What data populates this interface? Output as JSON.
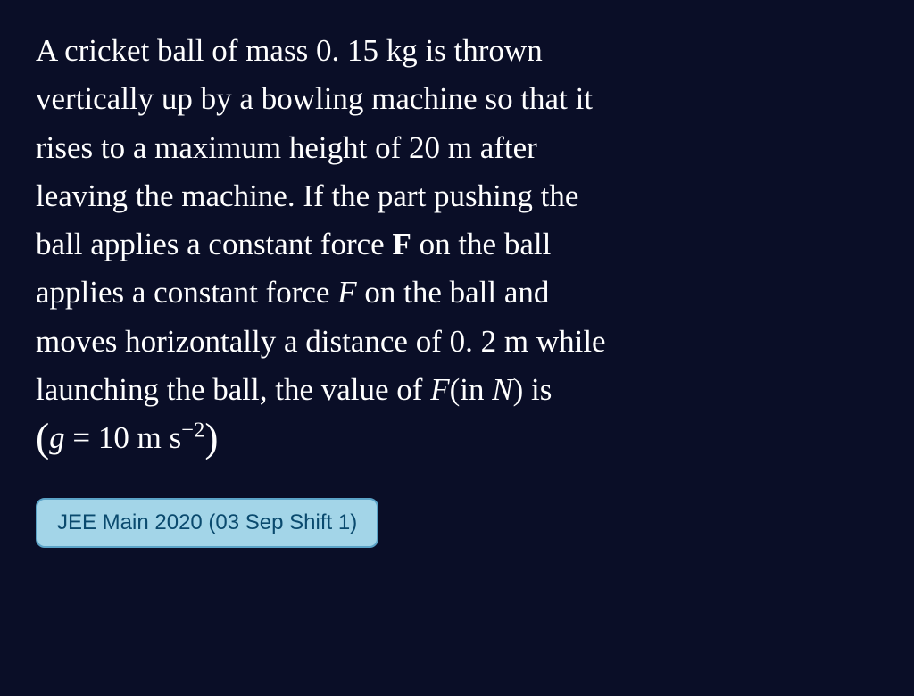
{
  "background_color": "#0a0e27",
  "text_color": "#ffffff",
  "question": {
    "line1": "A cricket ball of mass 0. 15 kg is thrown",
    "line2": "vertically up by a bowling machine so that it",
    "line3": "rises to a maximum height of 20 m after",
    "line4": "leaving the machine. If the part pushing the",
    "line5_a": "ball applies a constant force ",
    "line5_F": "F",
    "line5_b": " on the ball",
    "line6_a": "applies a constant force ",
    "line6_F": "F",
    "line6_b": " on the ball and",
    "line7": "moves horizontally a distance of 0. 2 m while",
    "line8_a": "launching the ball, the value of ",
    "line8_F": "F",
    "line8_paren_open": "(",
    "line8_in": "in ",
    "line8_N": "N",
    "line8_paren_close": ")",
    "line8_is": " is",
    "line9_open": "(",
    "line9_g": "g",
    "line9_eq": " = 10 m s",
    "line9_exp": "−2",
    "line9_close": ")"
  },
  "badge": {
    "text": "JEE Main 2020 (03 Sep Shift 1)",
    "bg_color": "#a3d5e8",
    "border_color": "#5ba3c7",
    "text_color": "#0a4a6e",
    "font_size": 24,
    "border_radius": 10
  },
  "typography": {
    "question_font_size": 35,
    "question_line_height": 1.55,
    "question_font_family": "Georgia, Times New Roman, serif"
  }
}
